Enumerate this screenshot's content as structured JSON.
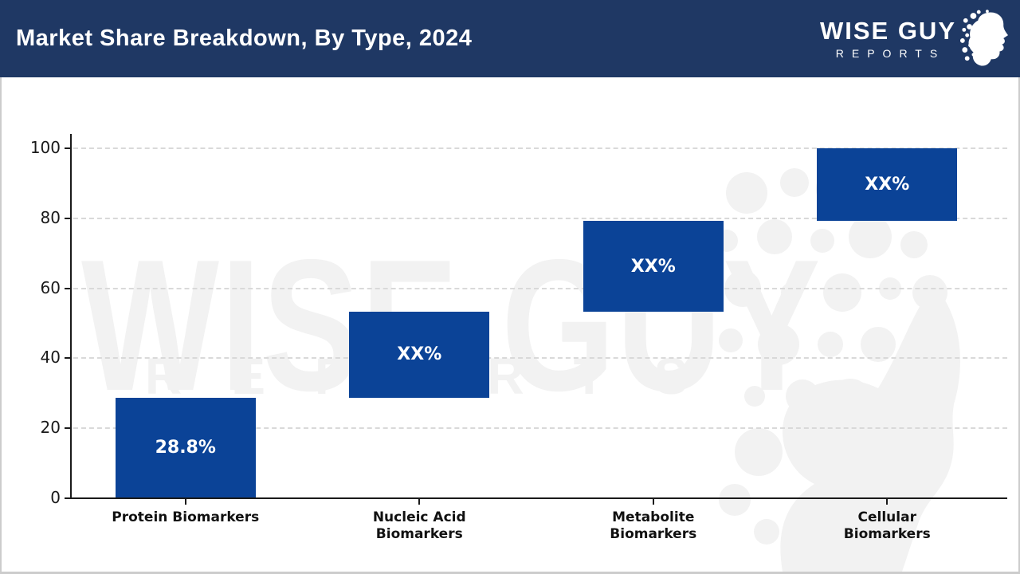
{
  "header": {
    "title": "Market Share Breakdown, By Type, 2024",
    "bg_color": "#1f3864",
    "logo": {
      "line1": "WISE GUY",
      "line2": "REPORTS"
    }
  },
  "watermark": {
    "line1": "WISE GUY",
    "line2": "REPORTS"
  },
  "chart_data": {
    "type": "bar",
    "subtype": "waterfall",
    "title": "Market Share Breakdown, By Type, 2024",
    "xlabel": "",
    "ylabel": "",
    "ylim": [
      0,
      105
    ],
    "yticks": [
      0,
      20,
      40,
      60,
      80,
      100
    ],
    "grid": "horizontal-dashed",
    "grid_color": "#d9d9d9",
    "bar_color": "#0b4397",
    "value_label_color": "#ffffff",
    "categories": [
      "Protein Biomarkers",
      "Nucleic Acid Biomarkers",
      "Metabolite Biomarkers",
      "Cellular Biomarkers"
    ],
    "category_label_lines": [
      [
        "Protein Biomarkers"
      ],
      [
        "Nucleic Acid",
        "Biomarkers"
      ],
      [
        "Metabolite",
        "Biomarkers"
      ],
      [
        "Cellular",
        "Biomarkers"
      ]
    ],
    "segments": [
      {
        "category": "Protein Biomarkers",
        "start": 0,
        "end": 28.8,
        "label": "28.8%"
      },
      {
        "category": "Nucleic Acid Biomarkers",
        "start": 28.8,
        "end": 53.3,
        "label": "XX%"
      },
      {
        "category": "Metabolite Biomarkers",
        "start": 53.3,
        "end": 79.2,
        "label": "XX%"
      },
      {
        "category": "Cellular Biomarkers",
        "start": 79.2,
        "end": 100,
        "label": "XX%"
      }
    ]
  }
}
